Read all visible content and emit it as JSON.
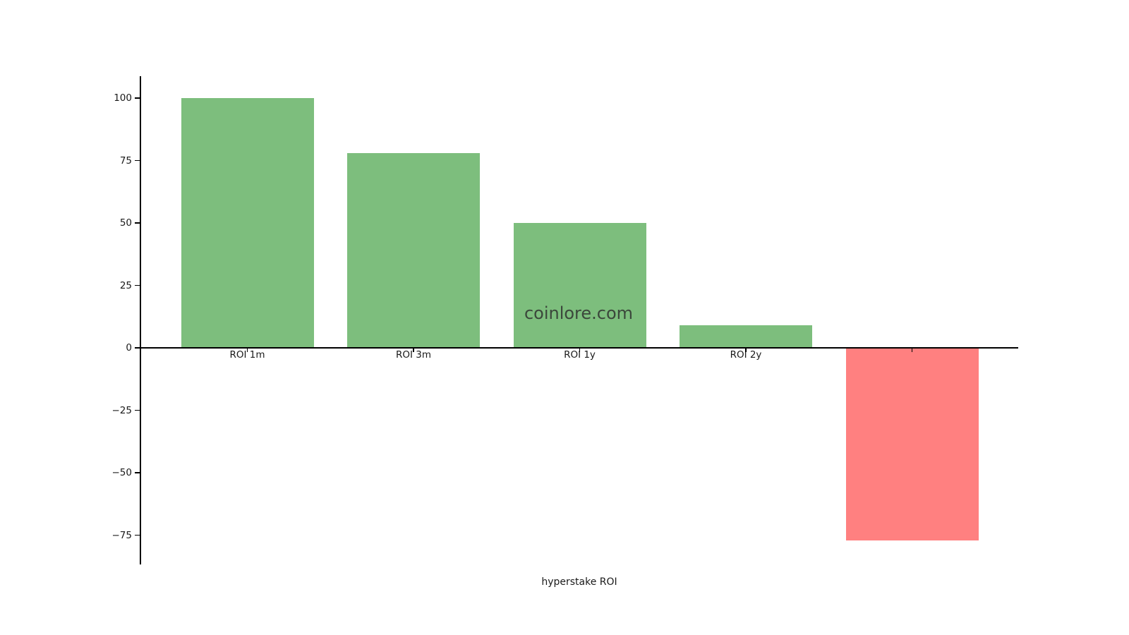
{
  "watermark": "coinlore.com",
  "chart_data": {
    "type": "bar",
    "title": "",
    "xlabel": "hyperstake ROI",
    "ylabel": "",
    "categories": [
      "ROI 1m",
      "ROI 3m",
      "ROI 1y",
      "ROI 2y",
      ""
    ],
    "values": [
      100,
      78,
      50,
      9,
      -77
    ],
    "yticks": [
      100,
      75,
      50,
      25,
      0,
      -25,
      -50,
      -75
    ],
    "ytick_labels": [
      "100",
      "75",
      "50",
      "25",
      "0",
      "−25",
      "−50",
      "−75"
    ],
    "ylim": [
      -86,
      109
    ],
    "grid": false,
    "legend": null,
    "colors": {
      "positive_bar": "#7dbe7d",
      "negative_bar": "#ff8080",
      "axis": "#000000",
      "tick_text": "#1a1a1a",
      "background": "#ffffff"
    }
  }
}
